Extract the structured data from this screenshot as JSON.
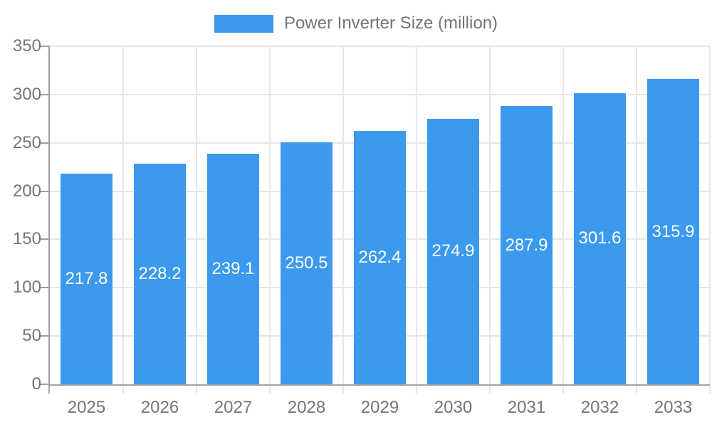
{
  "legend": {
    "label": "Power Inverter Size (million)"
  },
  "chart_data": {
    "type": "bar",
    "title": "",
    "xlabel": "",
    "ylabel": "",
    "categories": [
      "2025",
      "2026",
      "2027",
      "2028",
      "2029",
      "2030",
      "2031",
      "2032",
      "2033"
    ],
    "series": [
      {
        "name": "Power Inverter Size (million)",
        "values": [
          217.8,
          228.2,
          239.1,
          250.5,
          262.4,
          274.9,
          287.9,
          301.6,
          315.9
        ]
      }
    ],
    "ylim": [
      0,
      350
    ],
    "ytick_step": 50,
    "yticks": [
      0,
      50,
      100,
      150,
      200,
      250,
      300,
      350
    ],
    "grid": true,
    "legend_position": "top",
    "value_label_position": "inside-center"
  },
  "colors": {
    "bar": "#3B99EE",
    "grid": "#E7E7E7",
    "axis": "#A3A3A3",
    "tick": "#9E9E9E",
    "label_text": "#757575",
    "value_text": "#FFFFFF",
    "background": "#FFFFFF"
  }
}
